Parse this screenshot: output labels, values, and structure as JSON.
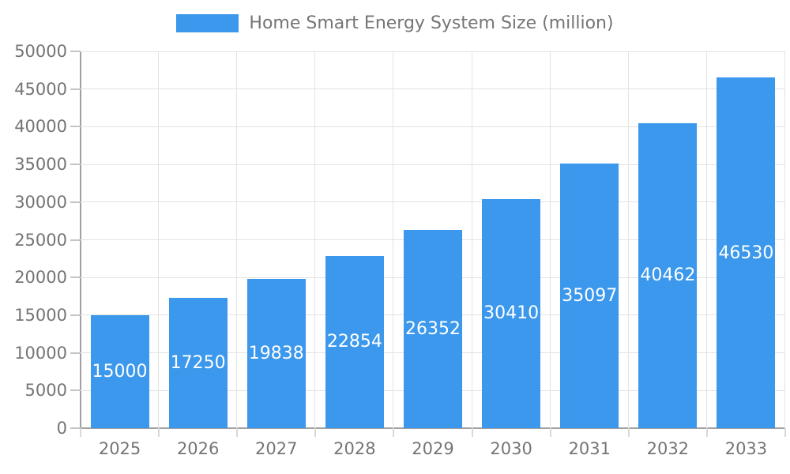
{
  "legend": {
    "label": "Home Smart Energy System Size (million)"
  },
  "chart_data": {
    "type": "bar",
    "title": "Home Smart Energy System Size (million)",
    "categories": [
      "2025",
      "2026",
      "2027",
      "2028",
      "2029",
      "2030",
      "2031",
      "2032",
      "2033"
    ],
    "values": [
      15000,
      17250,
      19838,
      22854,
      26352,
      30410,
      35097,
      40462,
      46530
    ],
    "xlabel": "",
    "ylabel": "",
    "ylim": [
      0,
      50000
    ],
    "ytick_step": 5000,
    "yticks": [
      0,
      5000,
      10000,
      15000,
      20000,
      25000,
      30000,
      35000,
      40000,
      45000,
      50000
    ],
    "grid": true,
    "legend_position": "top-center",
    "value_label_position": "inside-center"
  },
  "colors": {
    "bar": "#3B98EC",
    "value_text": "#FFFFFF",
    "axis_line": "#A0A0A0",
    "gridline": "#E3E3E3",
    "tick_y": "#C4C4C4",
    "tick_x": "#D9D9D9",
    "text": "#757575",
    "background": "#FFFFFF"
  }
}
